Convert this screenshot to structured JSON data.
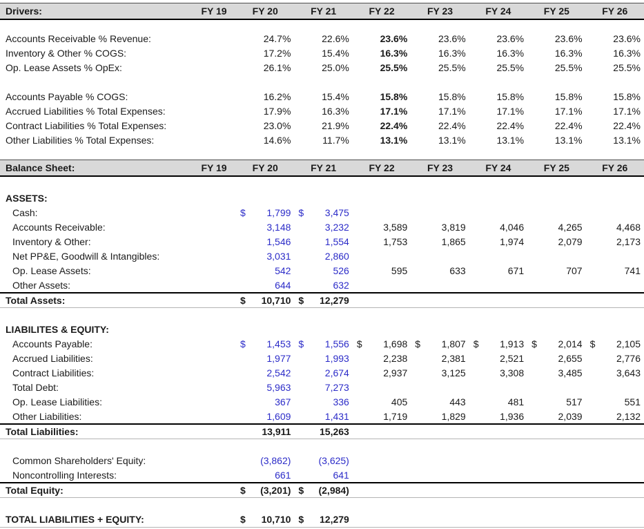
{
  "colors": {
    "header_bg": "#d9d9d9",
    "actuals_blue": "#2b2bc8",
    "text_black": "#1a1a1a",
    "total_rule": "#000000",
    "faint_rule": "#b3b3b3"
  },
  "columns": [
    "FY 19",
    "FY 20",
    "FY 21",
    "FY 22",
    "FY 23",
    "FY 24",
    "FY 25",
    "FY 26"
  ],
  "drivers": {
    "title": "Drivers:",
    "highlight_col_index": 3,
    "groups": [
      {
        "rows": [
          {
            "label": "Accounts Receivable % Revenue:",
            "values": [
              "",
              "24.7%",
              "22.6%",
              "23.6%",
              "23.6%",
              "23.6%",
              "23.6%",
              "23.6%"
            ]
          },
          {
            "label": "Inventory & Other % COGS:",
            "values": [
              "",
              "17.2%",
              "15.4%",
              "16.3%",
              "16.3%",
              "16.3%",
              "16.3%",
              "16.3%"
            ]
          },
          {
            "label": "Op. Lease Assets % OpEx:",
            "values": [
              "",
              "26.1%",
              "25.0%",
              "25.5%",
              "25.5%",
              "25.5%",
              "25.5%",
              "25.5%"
            ]
          }
        ]
      },
      {
        "rows": [
          {
            "label": "Accounts Payable % COGS:",
            "values": [
              "",
              "16.2%",
              "15.4%",
              "15.8%",
              "15.8%",
              "15.8%",
              "15.8%",
              "15.8%"
            ]
          },
          {
            "label": "Accrued Liabilities % Total Expenses:",
            "values": [
              "",
              "17.9%",
              "16.3%",
              "17.1%",
              "17.1%",
              "17.1%",
              "17.1%",
              "17.1%"
            ]
          },
          {
            "label": "Contract Liabilities % Total Expenses:",
            "values": [
              "",
              "23.0%",
              "21.9%",
              "22.4%",
              "22.4%",
              "22.4%",
              "22.4%",
              "22.4%"
            ]
          },
          {
            "label": "Other Liabilities % Total Expenses:",
            "values": [
              "",
              "14.6%",
              "11.7%",
              "13.1%",
              "13.1%",
              "13.1%",
              "13.1%",
              "13.1%"
            ]
          }
        ]
      }
    ]
  },
  "balance_sheet": {
    "title": "Balance Sheet:",
    "blue_col_indices": [
      1,
      2
    ],
    "rows": [
      {
        "type": "section",
        "label": "ASSETS:"
      },
      {
        "type": "item",
        "label": "Cash:",
        "values": [
          "",
          "1,799",
          "3,475",
          "",
          "",
          "",
          "",
          ""
        ],
        "dollar_cols": [
          1,
          2
        ]
      },
      {
        "type": "item",
        "label": "Accounts Receivable:",
        "values": [
          "",
          "3,148",
          "3,232",
          "3,589",
          "3,819",
          "4,046",
          "4,265",
          "4,468"
        ]
      },
      {
        "type": "item",
        "label": "Inventory & Other:",
        "values": [
          "",
          "1,546",
          "1,554",
          "1,753",
          "1,865",
          "1,974",
          "2,079",
          "2,173"
        ]
      },
      {
        "type": "item",
        "label": "Net PP&E, Goodwill & Intangibles:",
        "values": [
          "",
          "3,031",
          "2,860",
          "",
          "",
          "",
          "",
          ""
        ]
      },
      {
        "type": "item",
        "label": "Op. Lease Assets:",
        "values": [
          "",
          "542",
          "526",
          "595",
          "633",
          "671",
          "707",
          "741"
        ]
      },
      {
        "type": "item",
        "label": "Other Assets:",
        "values": [
          "",
          "644",
          "632",
          "",
          "",
          "",
          "",
          ""
        ]
      },
      {
        "type": "total",
        "label": "Total Assets:",
        "values": [
          "",
          "10,710",
          "12,279",
          "",
          "",
          "",
          "",
          ""
        ],
        "dollar_cols": [
          1,
          2
        ]
      },
      {
        "type": "spacer"
      },
      {
        "type": "section",
        "label": "LIABILITES & EQUITY:"
      },
      {
        "type": "item",
        "label": "Accounts Payable:",
        "values": [
          "",
          "1,453",
          "1,556",
          "1,698",
          "1,807",
          "1,913",
          "2,014",
          "2,105"
        ],
        "dollar_cols": [
          1,
          2,
          3,
          4,
          5,
          6,
          7
        ]
      },
      {
        "type": "item",
        "label": "Accrued Liabilities:",
        "values": [
          "",
          "1,977",
          "1,993",
          "2,238",
          "2,381",
          "2,521",
          "2,655",
          "2,776"
        ]
      },
      {
        "type": "item",
        "label": "Contract Liabilities:",
        "values": [
          "",
          "2,542",
          "2,674",
          "2,937",
          "3,125",
          "3,308",
          "3,485",
          "3,643"
        ]
      },
      {
        "type": "item",
        "label": "Total Debt:",
        "values": [
          "",
          "5,963",
          "7,273",
          "",
          "",
          "",
          "",
          ""
        ]
      },
      {
        "type": "item",
        "label": "Op. Lease Liabilities:",
        "values": [
          "",
          "367",
          "336",
          "405",
          "443",
          "481",
          "517",
          "551"
        ]
      },
      {
        "type": "item",
        "label": "Other Liabilities:",
        "values": [
          "",
          "1,609",
          "1,431",
          "1,719",
          "1,829",
          "1,936",
          "2,039",
          "2,132"
        ]
      },
      {
        "type": "total",
        "label": "Total Liabilities:",
        "values": [
          "",
          "13,911",
          "15,263",
          "",
          "",
          "",
          "",
          ""
        ]
      },
      {
        "type": "spacer"
      },
      {
        "type": "item",
        "label": "Common Shareholders' Equity:",
        "values": [
          "",
          "(3,862)",
          "(3,625)",
          "",
          "",
          "",
          "",
          ""
        ]
      },
      {
        "type": "item",
        "label": "Noncontrolling Interests:",
        "values": [
          "",
          "661",
          "641",
          "",
          "",
          "",
          "",
          ""
        ]
      },
      {
        "type": "total",
        "label": "Total Equity:",
        "values": [
          "",
          "(3,201)",
          "(2,984)",
          "",
          "",
          "",
          "",
          ""
        ],
        "dollar_cols": [
          1,
          2
        ]
      },
      {
        "type": "spacer"
      },
      {
        "type": "grand_total",
        "label": "TOTAL LIABILITIES + EQUITY:",
        "values": [
          "",
          "10,710",
          "12,279",
          "",
          "",
          "",
          "",
          ""
        ],
        "dollar_cols": [
          1,
          2
        ]
      }
    ]
  }
}
